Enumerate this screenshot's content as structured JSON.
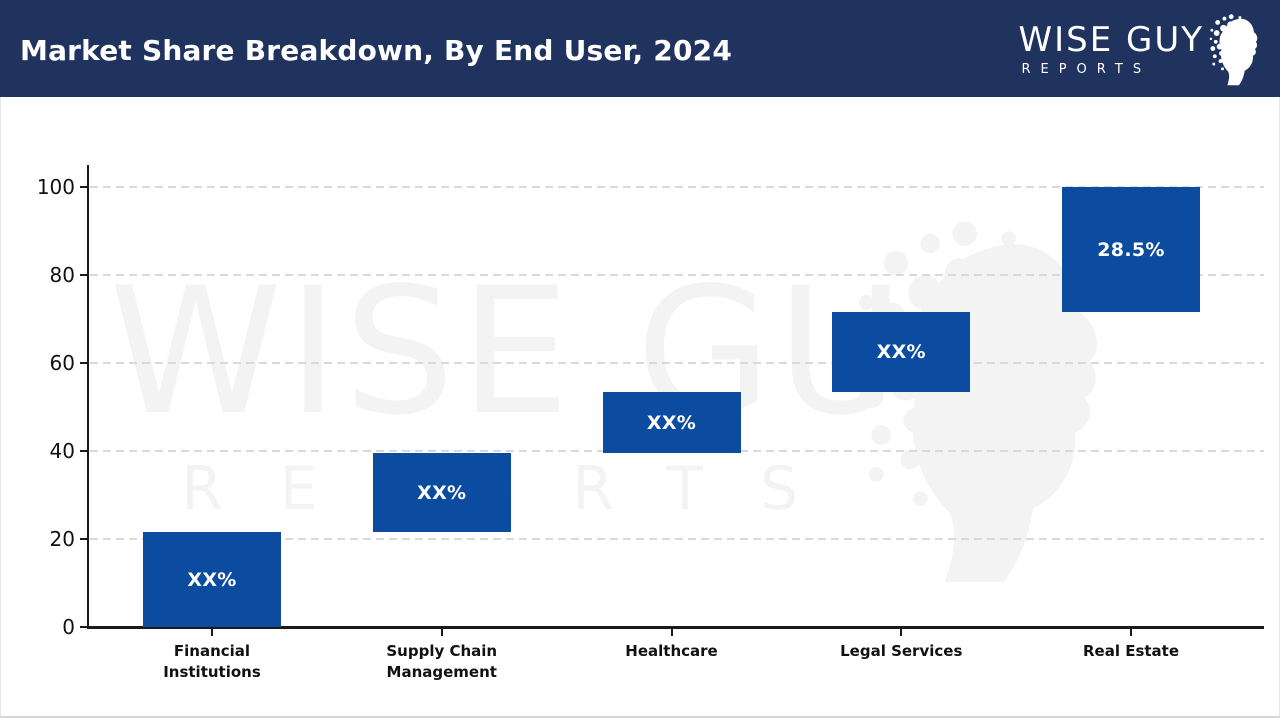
{
  "header": {
    "title": "Market Share Breakdown, By End User, 2024",
    "logo": {
      "wordmark": "WISE GUY",
      "subtext": "REPORTS"
    }
  },
  "watermark": {
    "wordmark": "WISE GUY",
    "subtext": "REPORTS"
  },
  "colors": {
    "header_bg": "#20335f",
    "bar": "#0b4ba0",
    "bar_label": "#ffffff",
    "axis": "#1a1a1a",
    "grid": "#d9d9d9",
    "watermark": "#f3f3f3",
    "title_text": "#ffffff",
    "tick_text": "#111111"
  },
  "chart_data": {
    "type": "bar",
    "variant": "waterfall",
    "title": "Market Share Breakdown, By End User, 2024",
    "categories": [
      "Financial Institutions",
      "Supply Chain Management",
      "Healthcare",
      "Legal Services",
      "Real Estate"
    ],
    "segments": [
      {
        "category": "Financial Institutions",
        "start": 0,
        "end": 21.5,
        "label": "XX%"
      },
      {
        "category": "Supply Chain Management",
        "start": 21.5,
        "end": 39.5,
        "label": "XX%"
      },
      {
        "category": "Healthcare",
        "start": 39.5,
        "end": 53.3,
        "label": "XX%"
      },
      {
        "category": "Legal Services",
        "start": 53.3,
        "end": 71.5,
        "label": "XX%"
      },
      {
        "category": "Real Estate",
        "start": 71.5,
        "end": 100,
        "label": "28.5%"
      }
    ],
    "xlabel": "",
    "ylabel": "",
    "yticks": [
      0,
      20,
      40,
      60,
      80,
      100
    ],
    "ylim": [
      0,
      105
    ],
    "grid": true,
    "grid_style": "dashed",
    "legend_position": "none",
    "bar_color": "#0b4ba0"
  }
}
